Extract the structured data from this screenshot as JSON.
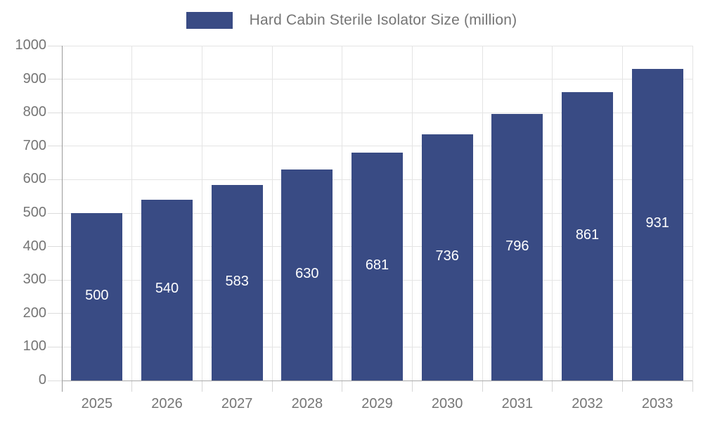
{
  "chart_data": {
    "type": "bar",
    "title": "Hard Cabin Sterile Isolator Size (million)",
    "series_name": "Hard Cabin Sterile Isolator Size (million)",
    "categories": [
      "2025",
      "2026",
      "2027",
      "2028",
      "2029",
      "2030",
      "2031",
      "2032",
      "2033"
    ],
    "values": [
      500,
      540,
      583,
      630,
      681,
      736,
      796,
      861,
      931
    ],
    "value_labels": [
      "500",
      "540",
      "583",
      "630",
      "681",
      "736",
      "796",
      "861",
      "931"
    ],
    "xlabel": "",
    "ylabel": "",
    "ylim": [
      0,
      1000
    ],
    "ytick_step": 100,
    "ytick_labels": [
      "0",
      "100",
      "200",
      "300",
      "400",
      "500",
      "600",
      "700",
      "800",
      "900",
      "1000"
    ],
    "grid": "on",
    "legend_position": "top",
    "colors": {
      "bar": "#394B84",
      "value_label": "#ffffff",
      "axis_line": "#9a9a9a",
      "gridline": "#e4e4e4",
      "tick_label": "#757575",
      "legend_text": "#757575",
      "background": "#ffffff"
    }
  }
}
